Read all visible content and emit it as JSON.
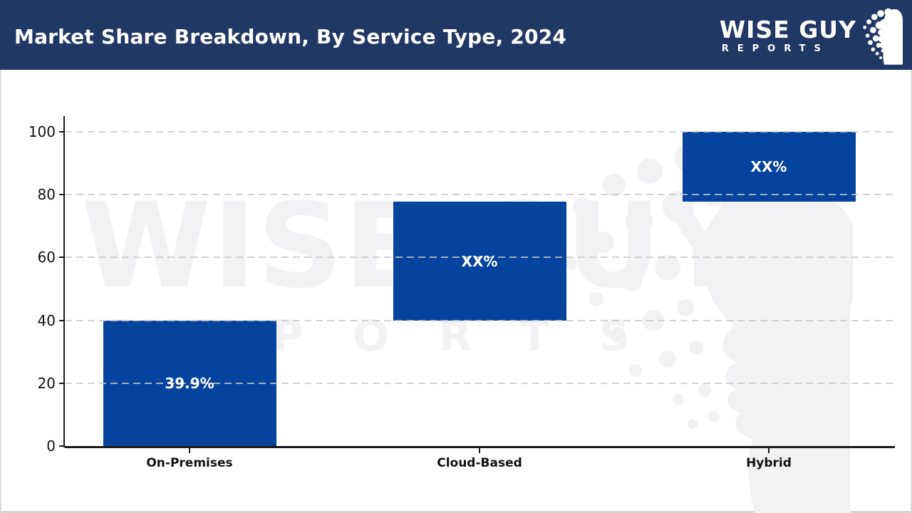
{
  "header": {
    "title": "Market Share Breakdown, By Service Type, 2024",
    "brand": {
      "name_line1": "WISE GUY",
      "name_line2": "REPORTS"
    }
  },
  "watermark": {
    "line1": "WISE GUY",
    "line2": "REPORTS"
  },
  "colors": {
    "header_bg": "#1f3864",
    "bar_blue": "#06439c",
    "grid_gray": "#c8c8c8",
    "axis_black": "#1a1a1a",
    "watermark_gray": "#f2f2f4",
    "bar_label_white": "#ffffff"
  },
  "chart_data": {
    "type": "bar",
    "variant": "waterfall-breakdown",
    "title": "Market Share Breakdown, By Service Type, 2024",
    "categories": [
      "On-Premises",
      "Cloud-Based",
      "Hybrid"
    ],
    "segments": [
      {
        "category": "On-Premises",
        "start": 0,
        "end": 39.9,
        "label": "39.9%"
      },
      {
        "category": "Cloud-Based",
        "start": 39.9,
        "end": 77.7,
        "label": "XX%"
      },
      {
        "category": "Hybrid",
        "start": 77.7,
        "end": 100,
        "label": "XX%"
      }
    ],
    "xlabel": "",
    "ylabel": "",
    "ylim": [
      0,
      100
    ],
    "yticks": [
      0,
      20,
      40,
      60,
      80,
      100
    ],
    "grid": "horizontal-dashed-over-bars",
    "legend": "none",
    "bar_color": "#06439c"
  }
}
